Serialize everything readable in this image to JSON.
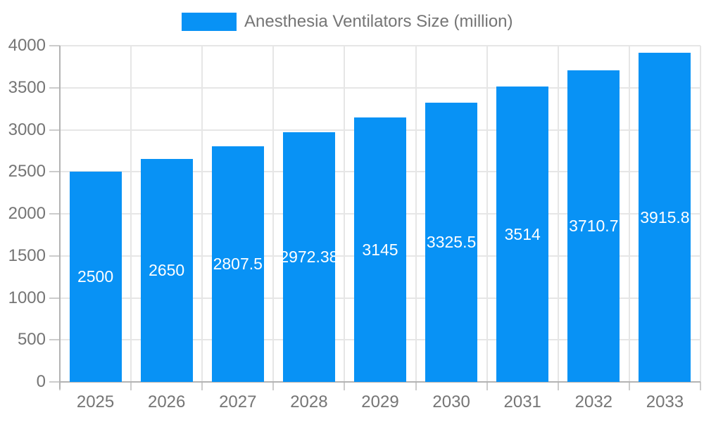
{
  "legend": {
    "label": "Anesthesia Ventilators Size (million)"
  },
  "chart_data": {
    "type": "bar",
    "title": "Anesthesia Ventilators Size (million)",
    "categories": [
      "2025",
      "2026",
      "2027",
      "2028",
      "2029",
      "2030",
      "2031",
      "2032",
      "2033"
    ],
    "values": [
      2500,
      2650,
      2807.5,
      2972.38,
      3145,
      3325.5,
      3514,
      3710.7,
      3915.8
    ],
    "bar_labels": [
      "2500",
      "2650",
      "2807.5",
      "2972.38",
      "3145",
      "3325.5",
      "3514",
      "3710.7",
      "3915.8"
    ],
    "xlabel": "",
    "ylabel": "",
    "ylim": [
      0,
      4000
    ],
    "ytick_step": 500,
    "yticks": [
      "0",
      "500",
      "1000",
      "1500",
      "2000",
      "2500",
      "3000",
      "3500",
      "4000"
    ],
    "grid": true,
    "legend_position": "top-center",
    "colors": {
      "bar": "#0892F5",
      "bar_label": "#FFFFFF",
      "axis_text": "#757575",
      "legend_text": "#757575",
      "gridline": "#E6E6E6",
      "axis_line": "#B3B3B3",
      "tick": "#CCCCCC",
      "background": "#FFFFFF"
    }
  }
}
